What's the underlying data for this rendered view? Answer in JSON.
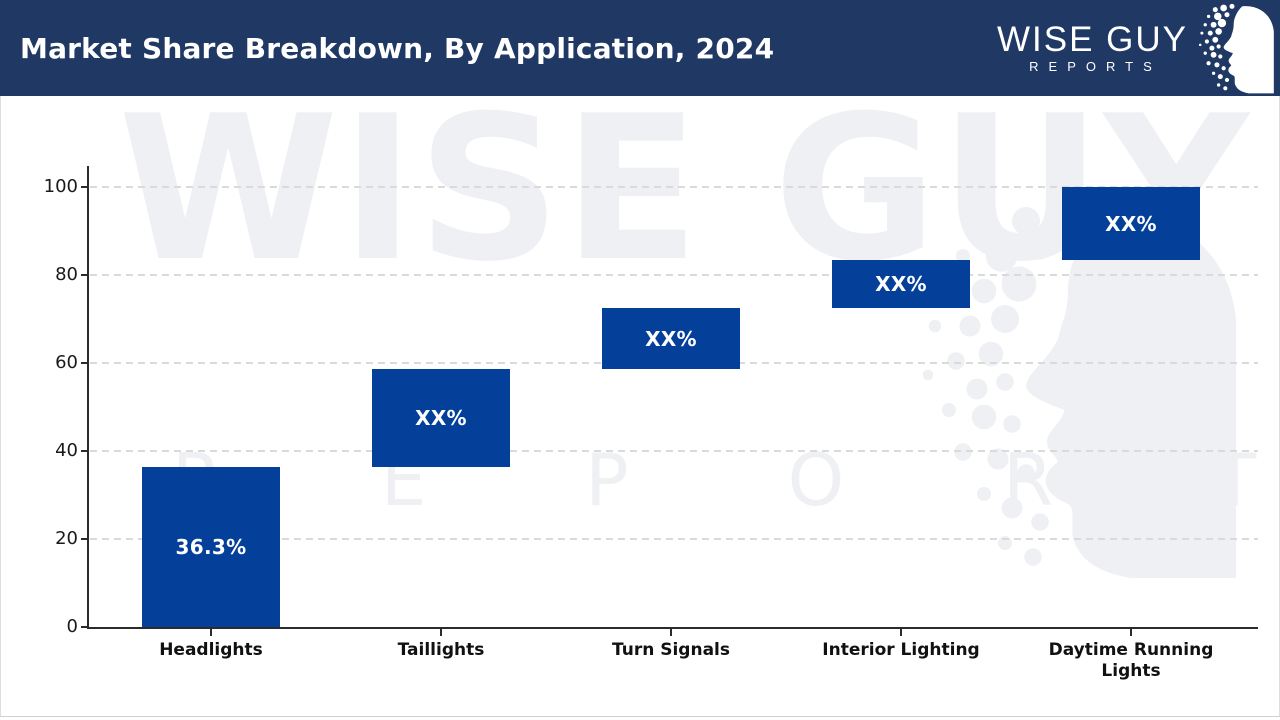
{
  "header": {
    "title": "Market Share Breakdown, By Application, 2024",
    "logo": {
      "wordmark": "WISE GUY",
      "subtext": "REPORTS"
    }
  },
  "watermark": {
    "wordmark": "WISE GUY",
    "subtext": "R E P O R T S"
  },
  "chart_data": {
    "type": "bar",
    "subtype": "waterfall",
    "title": "Market Share Breakdown, By Application, 2024",
    "xlabel": "",
    "ylabel": "",
    "categories": [
      "Headlights",
      "Taillights",
      "Turn Signals",
      "Interior Lighting",
      "Daytime Running Lights"
    ],
    "segments": [
      {
        "category": "Headlights",
        "start": 0,
        "end": 36.3,
        "label": "36.3%"
      },
      {
        "category": "Taillights",
        "start": 36.3,
        "end": 58.6,
        "label": "XX%"
      },
      {
        "category": "Turn Signals",
        "start": 58.6,
        "end": 72.5,
        "label": "XX%"
      },
      {
        "category": "Interior Lighting",
        "start": 72.5,
        "end": 83.4,
        "label": "XX%"
      },
      {
        "category": "Daytime Running Lights",
        "start": 83.4,
        "end": 100,
        "label": "XX%"
      }
    ],
    "ylim": [
      0,
      100
    ],
    "yticks": [
      0,
      20,
      40,
      60,
      80,
      100
    ],
    "grid": "horizontal-dashed",
    "legend": "none",
    "bar_color": "#04409a",
    "label_color": "#ffffff"
  },
  "colors": {
    "header_bg": "#1f3864",
    "header_text": "#ffffff",
    "axis": "#2b2b2b",
    "grid": "#d9d9d9",
    "watermark": "#eff0f3",
    "background": "#ffffff"
  }
}
